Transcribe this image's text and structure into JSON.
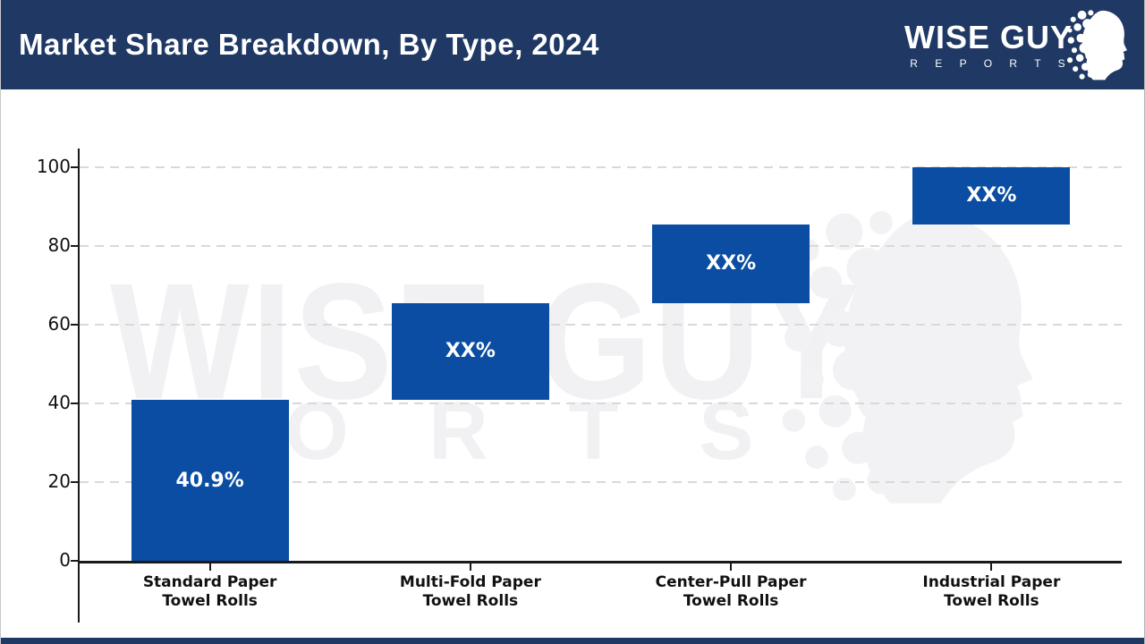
{
  "header": {
    "title": "Market Share Breakdown, By Type, 2024",
    "logo": {
      "line1": "WISE GUY",
      "line2": "R E P O R T S"
    }
  },
  "watermark": {
    "line1": "WISE GUY",
    "line2": "P O R T S"
  },
  "colors": {
    "header_bg": "#1f3864",
    "bar": "#0b4da2",
    "gridline": "#d9d9d9",
    "axis": "#1a1a1a",
    "bar_label": "#ffffff",
    "watermark": "#f1f1f4"
  },
  "chart_data": {
    "type": "bar",
    "subtype": "waterfall",
    "title": "Market Share Breakdown, By Type, 2024",
    "categories": [
      [
        "Standard Paper",
        "Towel Rolls"
      ],
      [
        "Multi-Fold Paper",
        "Towel Rolls"
      ],
      [
        "Center-Pull Paper",
        "Towel Rolls"
      ],
      [
        "Industrial Paper",
        "Towel Rolls"
      ]
    ],
    "series": [
      {
        "name": "Standard Paper Towel Rolls",
        "start": 0,
        "end": 40.9,
        "label": "40.9%"
      },
      {
        "name": "Multi-Fold Paper Towel Rolls",
        "start": 40.9,
        "end": 65.5,
        "label": "XX%"
      },
      {
        "name": "Center-Pull Paper Towel Rolls",
        "start": 65.5,
        "end": 85.5,
        "label": "XX%"
      },
      {
        "name": "Industrial Paper Towel Rolls",
        "start": 85.5,
        "end": 100,
        "label": "XX%"
      }
    ],
    "yticks": [
      0,
      20,
      40,
      60,
      80,
      100
    ],
    "ylim": [
      0,
      105
    ],
    "xlabel": "",
    "ylabel": "",
    "grid": "dashed-horizontal",
    "legend": "none"
  }
}
